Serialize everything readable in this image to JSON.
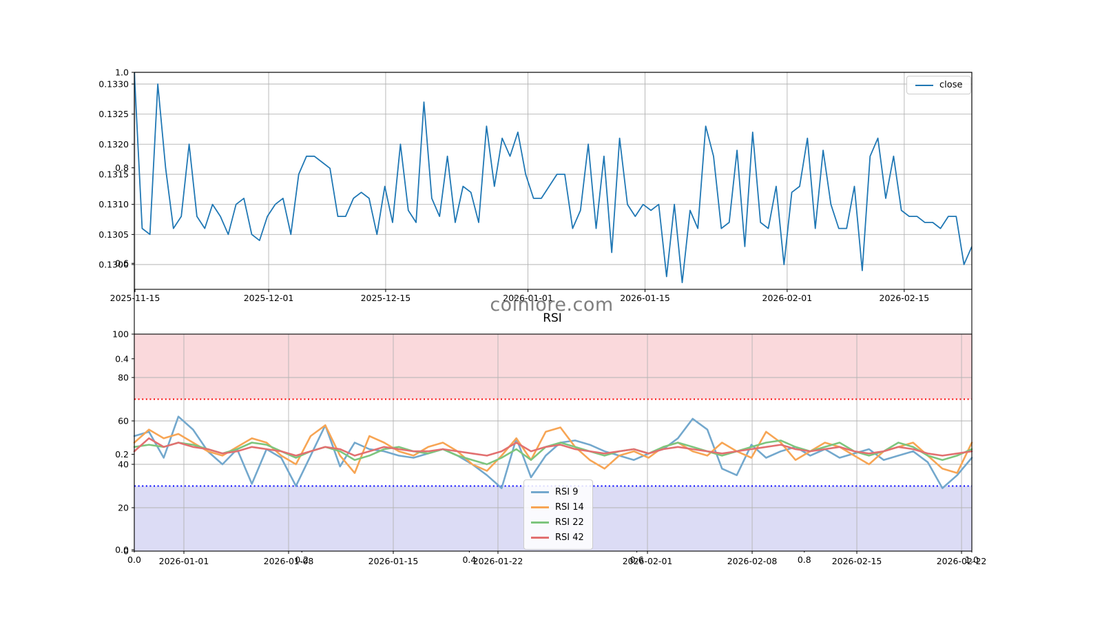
{
  "watermark": "coinlore.com",
  "price_chart": {
    "legend_label": "close",
    "line_color": "#1f77b4",
    "grid_color": "#b3b3b3",
    "y_tick_labels": [
      "0.1330",
      "0.1325",
      "0.1320",
      "0.1315",
      "0.1310",
      "0.1305",
      "0.1300"
    ],
    "x_tick_labels": [
      "2025-11-15",
      "2025-12-01",
      "2025-12-15",
      "2026-01-01",
      "2026-01-15",
      "2026-02-01",
      "2026-02-15"
    ]
  },
  "rsi_chart": {
    "title": "RSI",
    "y_tick_labels": [
      "100",
      "80",
      "60",
      "40",
      "20",
      "0"
    ],
    "x_tick_labels": [
      "2026-01-01",
      "2026-01-08",
      "2026-01-15",
      "2026-01-22",
      "2026-02-01",
      "2026-02-08",
      "2026-02-15",
      "2026-02-22"
    ],
    "overbought_band_color": "#fad9dc",
    "oversold_band_color": "#dcdcf5",
    "overbought_line_color": "#ff0000",
    "oversold_line_color": "#0000ff",
    "legend": [
      {
        "label": "RSI 9",
        "color": "#73a8cd"
      },
      {
        "label": "RSI 14",
        "color": "#f7a554"
      },
      {
        "label": "RSI 22",
        "color": "#7dc57d"
      },
      {
        "label": "RSI 42",
        "color": "#e27070"
      }
    ]
  },
  "overlay_axis": {
    "x_tick_labels": [
      "0.0",
      "0.2",
      "0.4",
      "0.6",
      "0.8",
      "1.0"
    ],
    "y_tick_labels": [
      "1.0",
      "0.8",
      "0.6",
      "0.4",
      "0.2",
      "0.0"
    ]
  },
  "chart_data": [
    {
      "type": "line",
      "title": "",
      "legend": [
        "close"
      ],
      "x_start": "2025-11-15",
      "x_end": "2026-02-23",
      "xlabel": "",
      "ylabel": "",
      "ylim": [
        0.12959,
        0.1332
      ],
      "y_ticks": [
        0.133,
        0.1325,
        0.132,
        0.1315,
        0.131,
        0.1305,
        0.13
      ],
      "grid": true,
      "legend_position": "upper right",
      "series": [
        {
          "name": "close",
          "values": [
            0.1332,
            0.1306,
            0.1305,
            0.133,
            0.1316,
            0.1306,
            0.1308,
            0.132,
            0.1308,
            0.1306,
            0.131,
            0.1308,
            0.1305,
            0.131,
            0.1311,
            0.1305,
            0.1304,
            0.1308,
            0.131,
            0.1311,
            0.1305,
            0.1315,
            0.1318,
            0.1318,
            0.1317,
            0.1316,
            0.1308,
            0.1308,
            0.1311,
            0.1312,
            0.1311,
            0.1305,
            0.1313,
            0.1307,
            0.132,
            0.1309,
            0.1307,
            0.1327,
            0.1311,
            0.1308,
            0.1318,
            0.1307,
            0.1313,
            0.1312,
            0.1307,
            0.1323,
            0.1313,
            0.1321,
            0.1318,
            0.1322,
            0.1315,
            0.1311,
            0.1311,
            0.1313,
            0.1315,
            0.1315,
            0.1306,
            0.1309,
            0.132,
            0.1306,
            0.1318,
            0.1302,
            0.1321,
            0.131,
            0.1308,
            0.131,
            0.1309,
            0.131,
            0.1298,
            0.131,
            0.1297,
            0.1309,
            0.1306,
            0.1323,
            0.1318,
            0.1306,
            0.1307,
            0.1319,
            0.1303,
            0.1322,
            0.1307,
            0.1306,
            0.1313,
            0.13,
            0.1312,
            0.1313,
            0.1321,
            0.1306,
            0.1319,
            0.131,
            0.1306,
            0.1306,
            0.1313,
            0.1299,
            0.1318,
            0.1321,
            0.1311,
            0.1318,
            0.1309,
            0.1308,
            0.1308,
            0.1307,
            0.1307,
            0.1306,
            0.1308,
            0.1308,
            0.13,
            0.1303
          ]
        }
      ]
    },
    {
      "type": "line",
      "title": "RSI",
      "legend": [
        "RSI 9",
        "RSI 14",
        "RSI 22",
        "RSI 42"
      ],
      "x_start": "2025-12-28",
      "x_end": "2026-02-22",
      "xlabel": "",
      "ylabel": "",
      "ylim": [
        0,
        100
      ],
      "y_ticks": [
        100,
        80,
        60,
        40,
        20,
        0
      ],
      "hlines": [
        70,
        30
      ],
      "bands": [
        [
          70,
          100
        ],
        [
          0,
          30
        ]
      ],
      "grid": true,
      "legend_position": "lower center",
      "series": [
        {
          "name": "RSI 9",
          "values": [
            53,
            55,
            43,
            62,
            56,
            46,
            40,
            47,
            31,
            47,
            43,
            30,
            44,
            58,
            39,
            50,
            47,
            46,
            44,
            43,
            45,
            47,
            44,
            40,
            35,
            29,
            52,
            34,
            44,
            50,
            51,
            49,
            46,
            44,
            42,
            45,
            47,
            52,
            61,
            56,
            38,
            35,
            49,
            43,
            46,
            48,
            44,
            47,
            43,
            45,
            47,
            42,
            44,
            46,
            41,
            29,
            35,
            43
          ]
        },
        {
          "name": "RSI 14",
          "values": [
            50,
            56,
            52,
            54,
            50,
            46,
            44,
            48,
            52,
            50,
            44,
            40,
            53,
            58,
            44,
            36,
            53,
            50,
            46,
            44,
            48,
            50,
            46,
            40,
            37,
            44,
            52,
            42,
            55,
            57,
            48,
            42,
            38,
            44,
            46,
            43,
            48,
            50,
            46,
            44,
            50,
            46,
            43,
            55,
            50,
            42,
            46,
            50,
            48,
            44,
            40,
            46,
            48,
            50,
            44,
            38,
            36,
            50
          ]
        },
        {
          "name": "RSI 22",
          "values": [
            48,
            49,
            48,
            50,
            49,
            47,
            45,
            47,
            50,
            49,
            46,
            43,
            46,
            48,
            46,
            42,
            44,
            47,
            48,
            46,
            45,
            47,
            44,
            42,
            40,
            43,
            47,
            42,
            48,
            50,
            48,
            46,
            44,
            46,
            47,
            45,
            48,
            50,
            48,
            46,
            44,
            46,
            48,
            50,
            51,
            48,
            46,
            48,
            50,
            46,
            44,
            46,
            50,
            48,
            44,
            42,
            44,
            47
          ]
        },
        {
          "name": "RSI 42",
          "values": [
            46,
            52,
            48,
            50,
            48,
            47,
            45,
            46,
            48,
            47,
            46,
            44,
            46,
            48,
            47,
            44,
            46,
            48,
            47,
            46,
            46,
            47,
            46,
            45,
            44,
            46,
            50,
            46,
            48,
            49,
            47,
            46,
            45,
            46,
            47,
            45,
            47,
            48,
            47,
            46,
            45,
            46,
            47,
            48,
            49,
            47,
            46,
            47,
            48,
            46,
            45,
            46,
            48,
            47,
            45,
            44,
            45,
            46
          ]
        }
      ]
    }
  ]
}
